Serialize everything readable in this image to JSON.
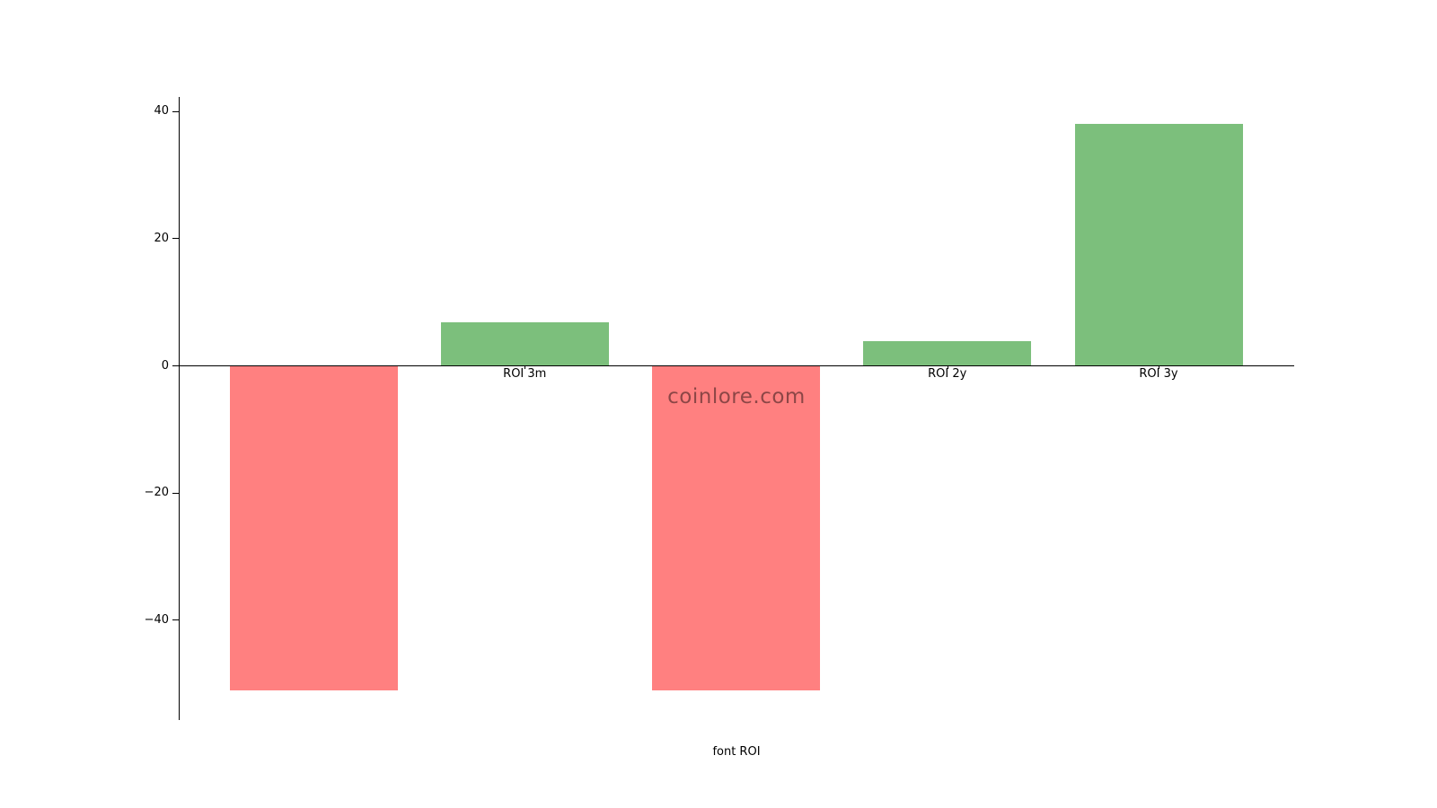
{
  "watermark": {
    "text": "coinlore.com"
  },
  "chart_data": {
    "type": "bar",
    "xlabel": "font ROI",
    "categories": [
      "",
      "ROI 3m",
      "",
      "ROI 2y",
      "ROI 3y"
    ],
    "values": [
      -51,
      6.9,
      -51,
      3.9,
      38
    ],
    "bar_colors": [
      "#ff8080",
      "#7cbf7c",
      "#ff8080",
      "#7cbf7c",
      "#7cbf7c"
    ],
    "positive_color": "#7cbf7c",
    "negative_color": "#ff8080",
    "y_ticks": [
      40,
      20,
      0,
      -20,
      -40
    ],
    "y_tick_labels": [
      "40",
      "20",
      "0",
      "−20",
      "−40"
    ],
    "ylim": [
      -55.5,
      42.5
    ],
    "grid": false,
    "legend": null,
    "axis_color": "#000000",
    "background_color": "#ffffff"
  }
}
